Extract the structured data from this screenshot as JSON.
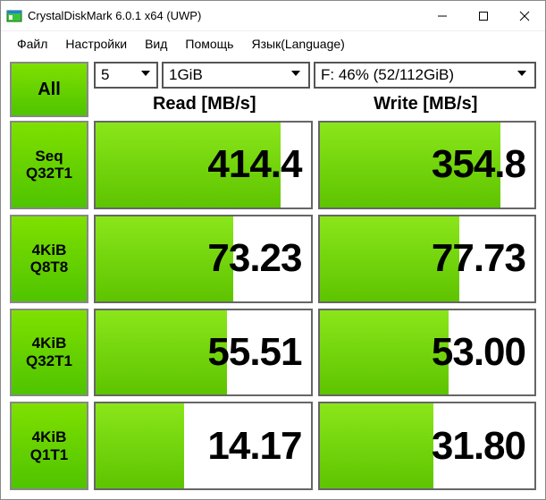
{
  "window": {
    "title": "CrystalDiskMark 6.0.1 x64 (UWP)"
  },
  "menu": {
    "file": "Файл",
    "settings": "Настройки",
    "view": "Вид",
    "help": "Помощь",
    "language": "Язык(Language)"
  },
  "controls": {
    "all_label": "All",
    "count": "5",
    "size": "1GiB",
    "drive": "F: 46% (52/112GiB)"
  },
  "headers": {
    "read": "Read [MB/s]",
    "write": "Write [MB/s]"
  },
  "style": {
    "bar_color_top": "#8ae61a",
    "bar_color_bottom": "#5ec400",
    "cell_border": "#666666"
  },
  "tests": [
    {
      "label1": "Seq",
      "label2": "Q32T1",
      "read": "414.4",
      "write": "354.8",
      "read_pct": 86,
      "write_pct": 84
    },
    {
      "label1": "4KiB",
      "label2": "Q8T8",
      "read": "73.23",
      "write": "77.73",
      "read_pct": 64,
      "write_pct": 65
    },
    {
      "label1": "4KiB",
      "label2": "Q32T1",
      "read": "55.51",
      "write": "53.00",
      "read_pct": 61,
      "write_pct": 60
    },
    {
      "label1": "4KiB",
      "label2": "Q1T1",
      "read": "14.17",
      "write": "31.80",
      "read_pct": 41,
      "write_pct": 53
    }
  ]
}
